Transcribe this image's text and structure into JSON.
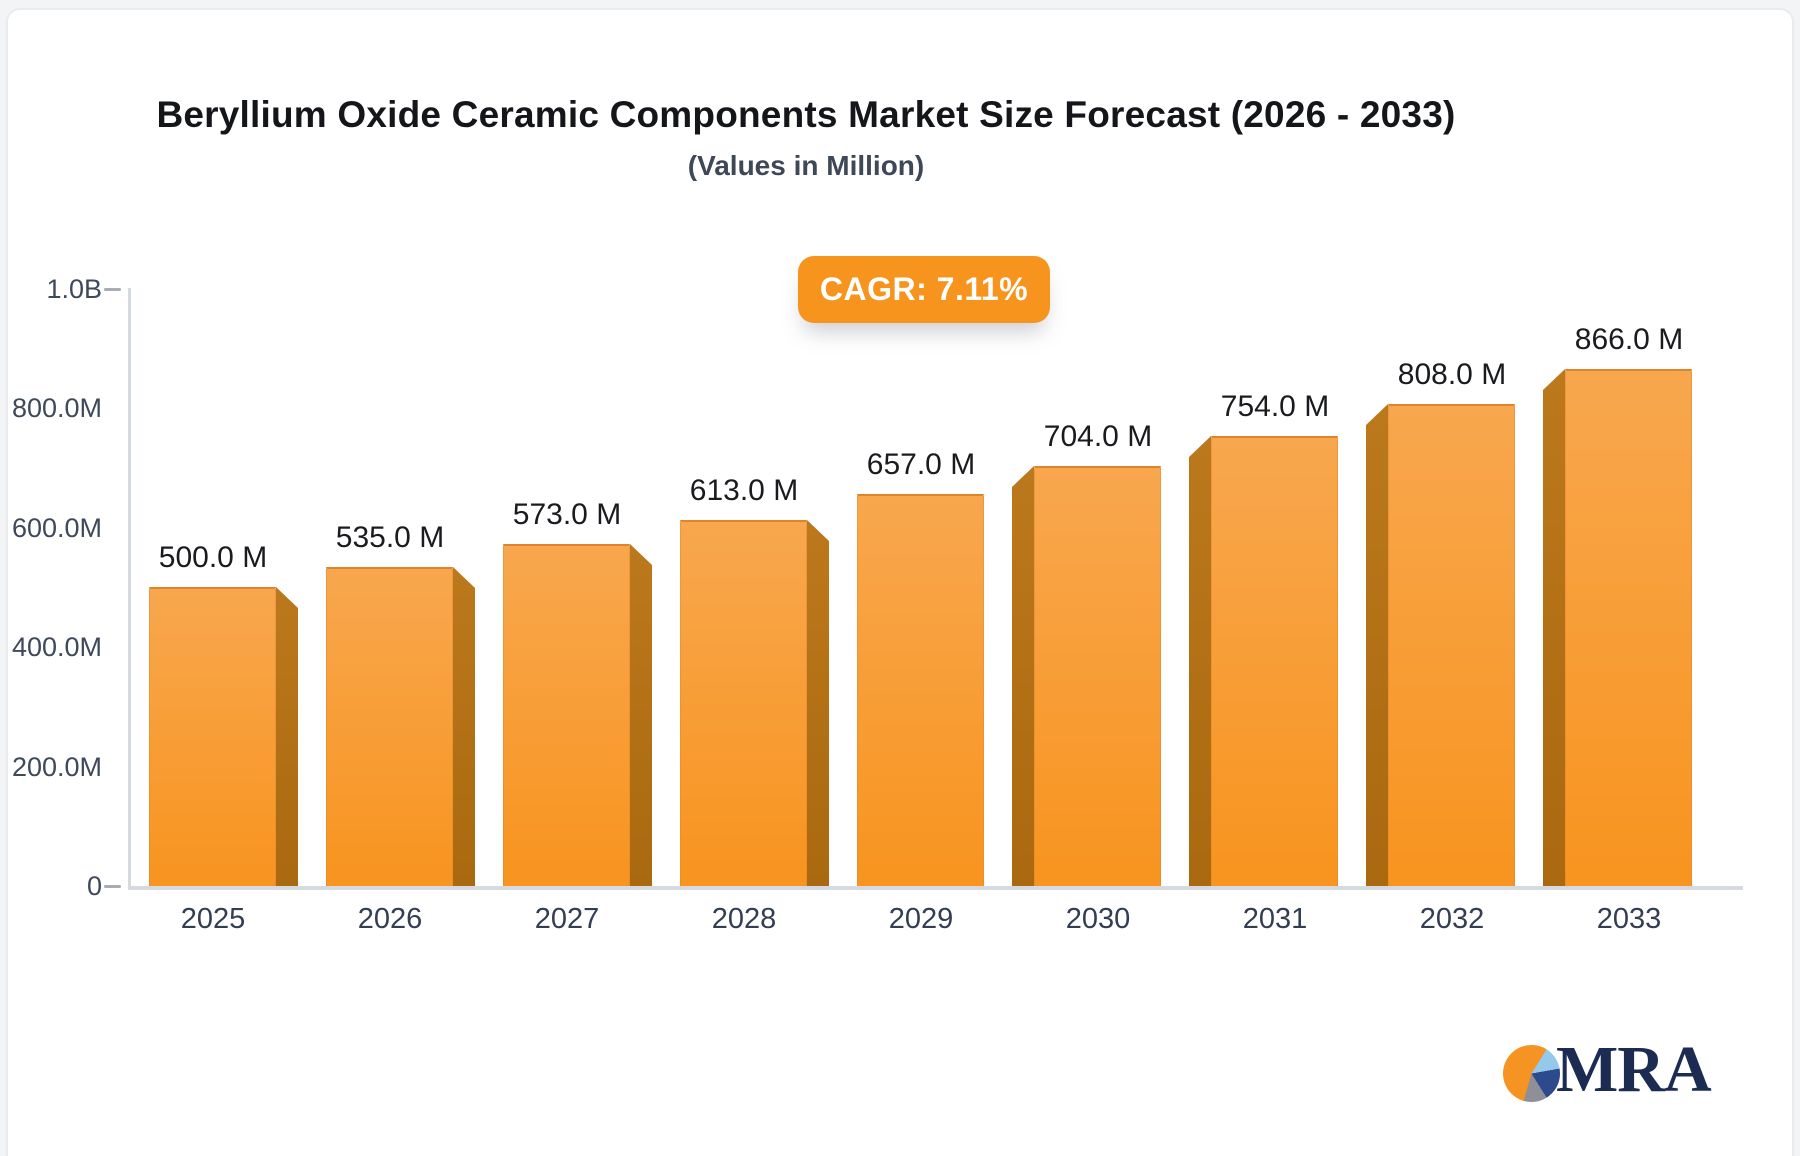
{
  "page": {
    "background": "#f3f4f6",
    "card_background": "#ffffff",
    "card_border": "#e9ebee"
  },
  "chart_data": {
    "type": "bar",
    "title": "Beryllium Oxide Ceramic Components Market Size Forecast (2026 - 2033)",
    "subtitle": "(Values in Million)",
    "cagr_badge": "CAGR: 7.11%",
    "categories": [
      "2025",
      "2026",
      "2027",
      "2028",
      "2029",
      "2030",
      "2031",
      "2032",
      "2033"
    ],
    "values": [
      500,
      535,
      573,
      613,
      657,
      704,
      754,
      808,
      866
    ],
    "bar_labels": [
      "500.0 M",
      "535.0 M",
      "573.0 M",
      "613.0 M",
      "657.0 M",
      "704.0 M",
      "754.0 M",
      "808.0 M",
      "866.0 M"
    ],
    "y_axis": {
      "max_value": 1000,
      "ticks": [
        {
          "label": "0",
          "value": 0
        },
        {
          "label": "200.0M",
          "value": 200
        },
        {
          "label": "400.0M",
          "value": 400
        },
        {
          "label": "600.0M",
          "value": 600
        },
        {
          "label": "800.0M",
          "value": 800
        },
        {
          "label": "1.0B",
          "value": 1000
        }
      ]
    },
    "grid": false,
    "legend": null,
    "style": "3d-perspective-columns"
  },
  "colors": {
    "bar_face_top": "#f8a74e",
    "bar_face_bottom": "#f8941f",
    "bar_face_edge": "#e0842c",
    "bar_side_top": "#bc781c",
    "bar_side_bottom": "#aa6910",
    "badge_background": "#f7941e",
    "axis_line": "#d6d9de",
    "tick_dash": "#a7adb5",
    "y_label": "#3e4959",
    "x_label": "#333e52",
    "value_label": "#191b1f",
    "title": "#14161a",
    "subtitle": "#3f4856"
  },
  "logo": {
    "text": "MRA",
    "text_color": "#1c2b52",
    "pie_segments": [
      {
        "name": "orange",
        "color": "#f59422",
        "from": 0,
        "to": 32
      },
      {
        "name": "light-blue",
        "color": "#94c9ec",
        "from": 32,
        "to": 80
      },
      {
        "name": "navy",
        "color": "#2c4a8c",
        "from": 80,
        "to": 148
      },
      {
        "name": "gray",
        "color": "#8f8f97",
        "from": 148,
        "to": 196
      },
      {
        "name": "orange",
        "color": "#f59422",
        "from": 196,
        "to": 360
      }
    ]
  }
}
